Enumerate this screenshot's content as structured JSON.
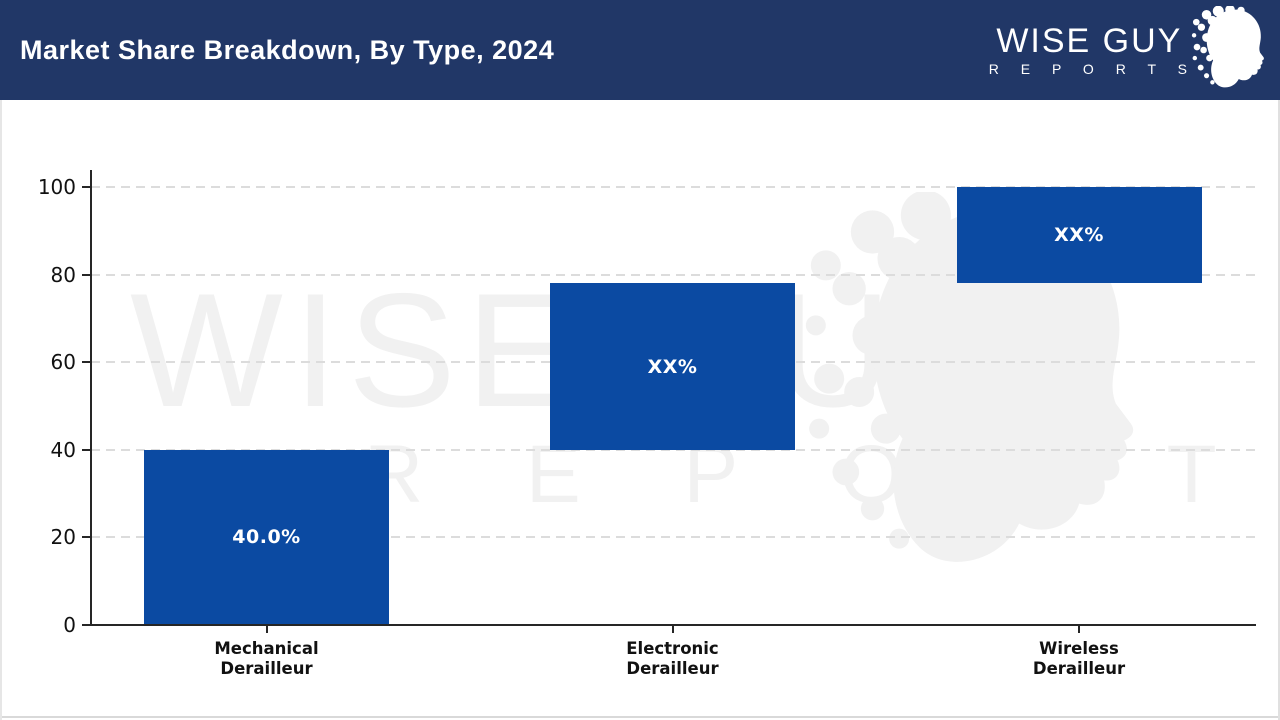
{
  "header": {
    "logo": {
      "line1": "WISE GUY",
      "line2": "R E P O R T S",
      "head_icon": "head-profile-dots-icon"
    }
  },
  "watermark": {
    "line1": "WISE GUY",
    "line2": "R E P O R T S",
    "head_icon": "head-profile-dots-icon"
  },
  "chart_data": {
    "type": "bar",
    "subtype": "waterfall",
    "title": "Market Share Breakdown, By Type, 2024",
    "categories": [
      "Mechanical Derailleur",
      "Electronic Derailleur",
      "Wireless Derailleur"
    ],
    "segments": [
      {
        "category": "Mechanical Derailleur",
        "start": 0,
        "end": 40,
        "label": "40.0%"
      },
      {
        "category": "Electronic Derailleur",
        "start": 40,
        "end": 78,
        "label": "XX%"
      },
      {
        "category": "Wireless Derailleur",
        "start": 78,
        "end": 100,
        "label": "XX%"
      }
    ],
    "ylabel": "",
    "xlabel": "",
    "ylim": [
      0,
      104
    ],
    "yticks": [
      0,
      20,
      40,
      60,
      80,
      100
    ],
    "grid": "horizontal-dashed",
    "legend": "none",
    "bar_color": "#0b4aa2",
    "bar_label_color": "#ffffff",
    "axis_color": "#262626",
    "header_color": "#213767"
  }
}
